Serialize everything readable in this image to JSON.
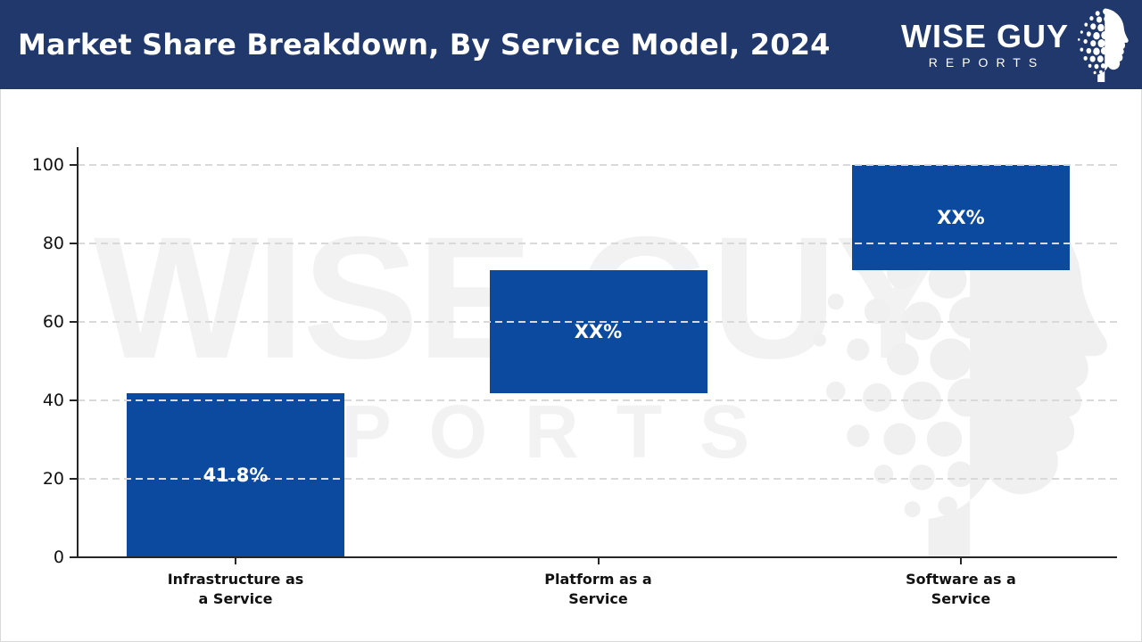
{
  "header": {
    "title": "Market Share Breakdown, By Service Model, 2024"
  },
  "logo": {
    "name": "WISE GUY",
    "sub": "REPORTS"
  },
  "watermark": {
    "line1": "WISE GUY",
    "line2": "REPORTS"
  },
  "colors": {
    "header_bg": "#20386B",
    "bar": "#0B4A9F",
    "bar_label": "#FFFFFF",
    "gridline": "#D9D9D9",
    "axis": "#262626",
    "watermark": "#F2F2F2"
  },
  "chart_data": {
    "type": "bar",
    "subtype": "waterfall-breakdown",
    "title": "Market Share Breakdown, By Service Model, 2024",
    "categories": [
      "Infrastructure as\na Service",
      "Platform as a\nService",
      "Software as a\nService"
    ],
    "segments": [
      {
        "category": "Infrastructure as a Service",
        "start": 0,
        "end": 41.8,
        "label": "41.8%"
      },
      {
        "category": "Platform as a Service",
        "start": 41.8,
        "end": 73.2,
        "label": "XX%"
      },
      {
        "category": "Software as a Service",
        "start": 73.2,
        "end": 100,
        "label": "XX%"
      }
    ],
    "y_ticks": [
      0,
      20,
      40,
      60,
      80,
      100
    ],
    "ylim": [
      0,
      104.5
    ],
    "xlabel": "",
    "ylabel": "",
    "grid": "horizontal-dashed",
    "legend": "none",
    "bar_color": "#0B4A9F",
    "bar_label_color": "#FFFFFF"
  }
}
